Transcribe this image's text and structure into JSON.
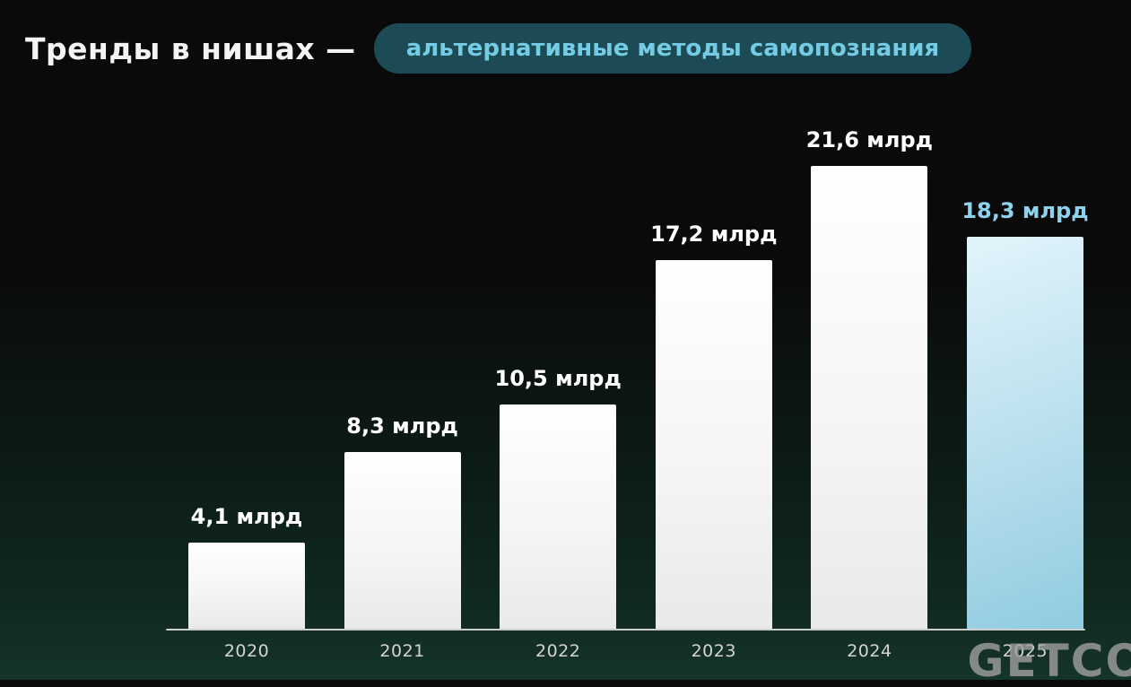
{
  "header": {
    "title": "Тренды в нишах —",
    "badge": "альтернативные методы самопознания"
  },
  "chart_data": {
    "type": "bar",
    "title": "Тренды в нишах — альтернативные методы самопознания",
    "categories": [
      "2020",
      "2021",
      "2022",
      "2023",
      "2024",
      "2025"
    ],
    "values": [
      4.1,
      8.3,
      10.5,
      17.2,
      21.6,
      18.3
    ],
    "value_labels": [
      "4,1 млрд",
      "8,3 млрд",
      "10,5 млрд",
      "17,2 млрд",
      "21,6 млрд",
      "18,3 млрд"
    ],
    "highlight_index": 5,
    "xlabel": "",
    "ylabel": "",
    "ylim": [
      0,
      24
    ],
    "grid": false,
    "legend": false,
    "bar_color": "#ffffff",
    "highlight_bar_color": "#9fd3e6",
    "value_label_color": "#ffffff",
    "highlight_value_label_color": "#8ed2ee"
  },
  "watermark": "GETCO",
  "colors": {
    "background_top": "#0a0a0a",
    "background_bottom": "#15342a",
    "badge_background": "#1d4b55",
    "badge_text": "#74cbe4",
    "axis_line": "#cfcfcf",
    "year_label": "#d4d4d4"
  }
}
